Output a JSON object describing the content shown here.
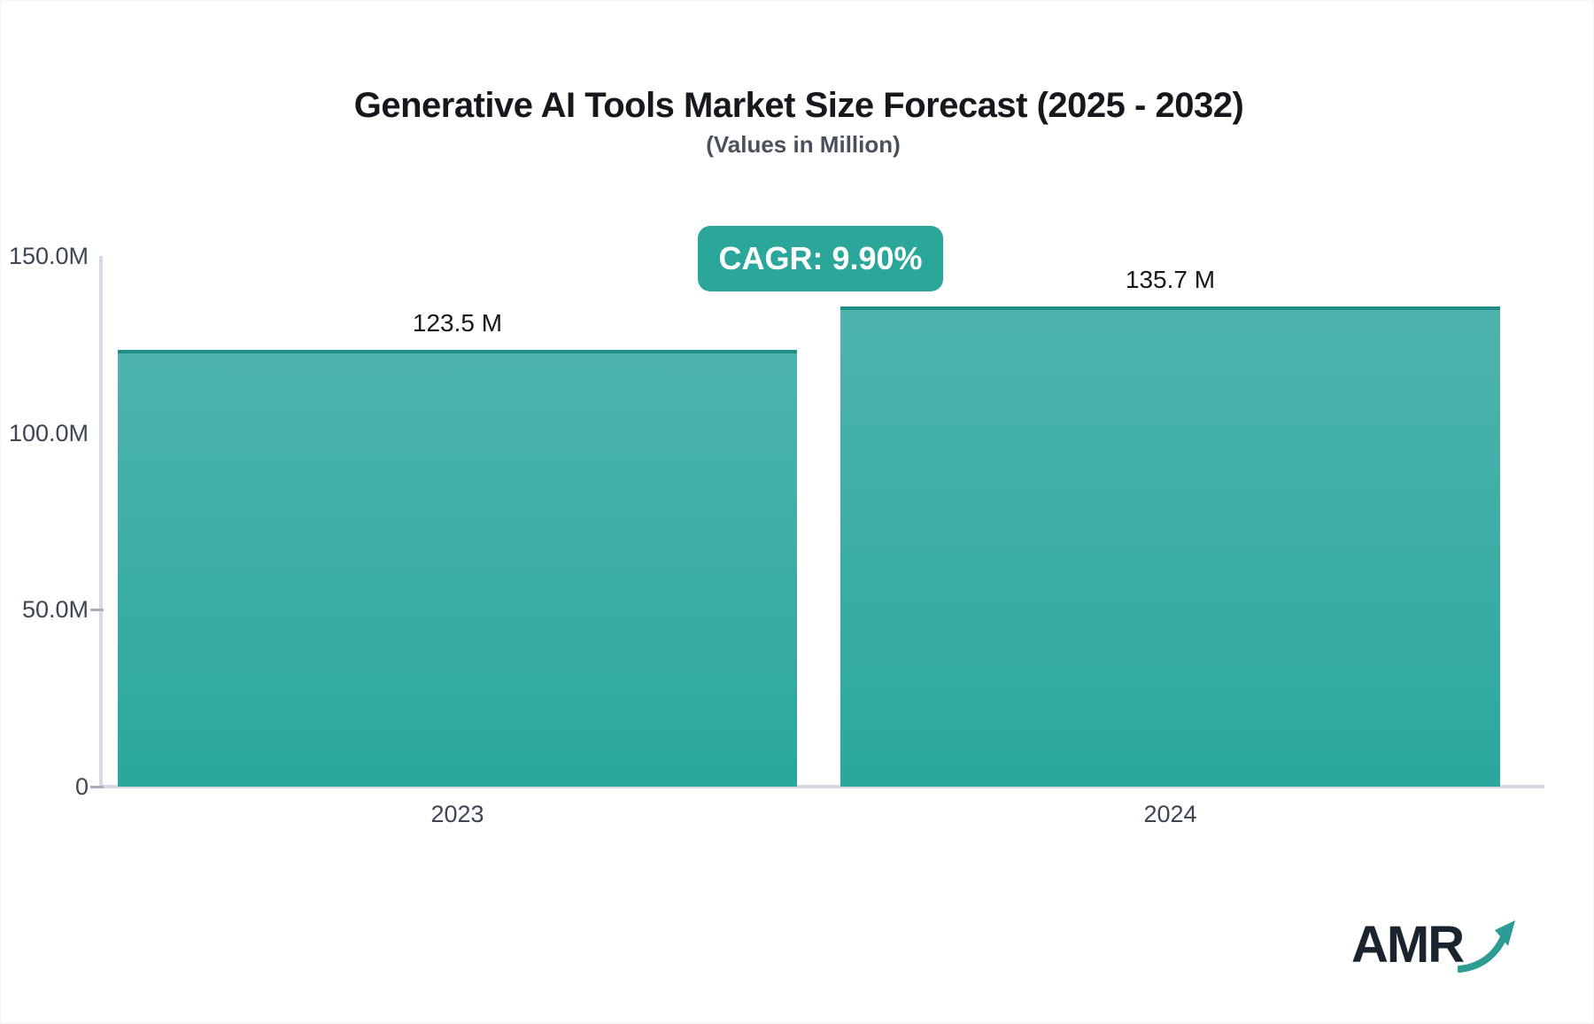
{
  "chart_data": {
    "type": "bar",
    "title": "Generative AI Tools Market Size Forecast (2025 - 2032)",
    "subtitle": "(Values in Million)",
    "annotation_badge": "CAGR: 9.90%",
    "categories": [
      "2023",
      "2024"
    ],
    "values": [
      123.5,
      135.7
    ],
    "data_labels": [
      "123.5 M",
      "135.7 M"
    ],
    "ylim": [
      0,
      150
    ],
    "yticks": [
      {
        "label": "150.0M",
        "value": 150,
        "dash": false
      },
      {
        "label": "100.0M",
        "value": 100,
        "dash": false
      },
      {
        "label": "50.0M",
        "value": 50,
        "dash": true
      },
      {
        "label": "0",
        "value": 0,
        "dash": true
      }
    ],
    "xlabel": "",
    "ylabel": "",
    "legend_position": "none",
    "grid": false,
    "colors": {
      "bar_top": "#4db4ad",
      "bar_bottom": "#2aa89c",
      "bar_border": "#1f8e86",
      "badge_bg": "#2aa69b",
      "badge_text": "#ffffff",
      "axis": "#d7dae0",
      "tick_label": "#3e4653",
      "title": "#15191e",
      "subtitle": "#49525c",
      "data_label": "#16181b"
    }
  },
  "logo": {
    "text": "AMR",
    "text_color": "#1a242e",
    "arrow_color": "#2e9b94"
  }
}
